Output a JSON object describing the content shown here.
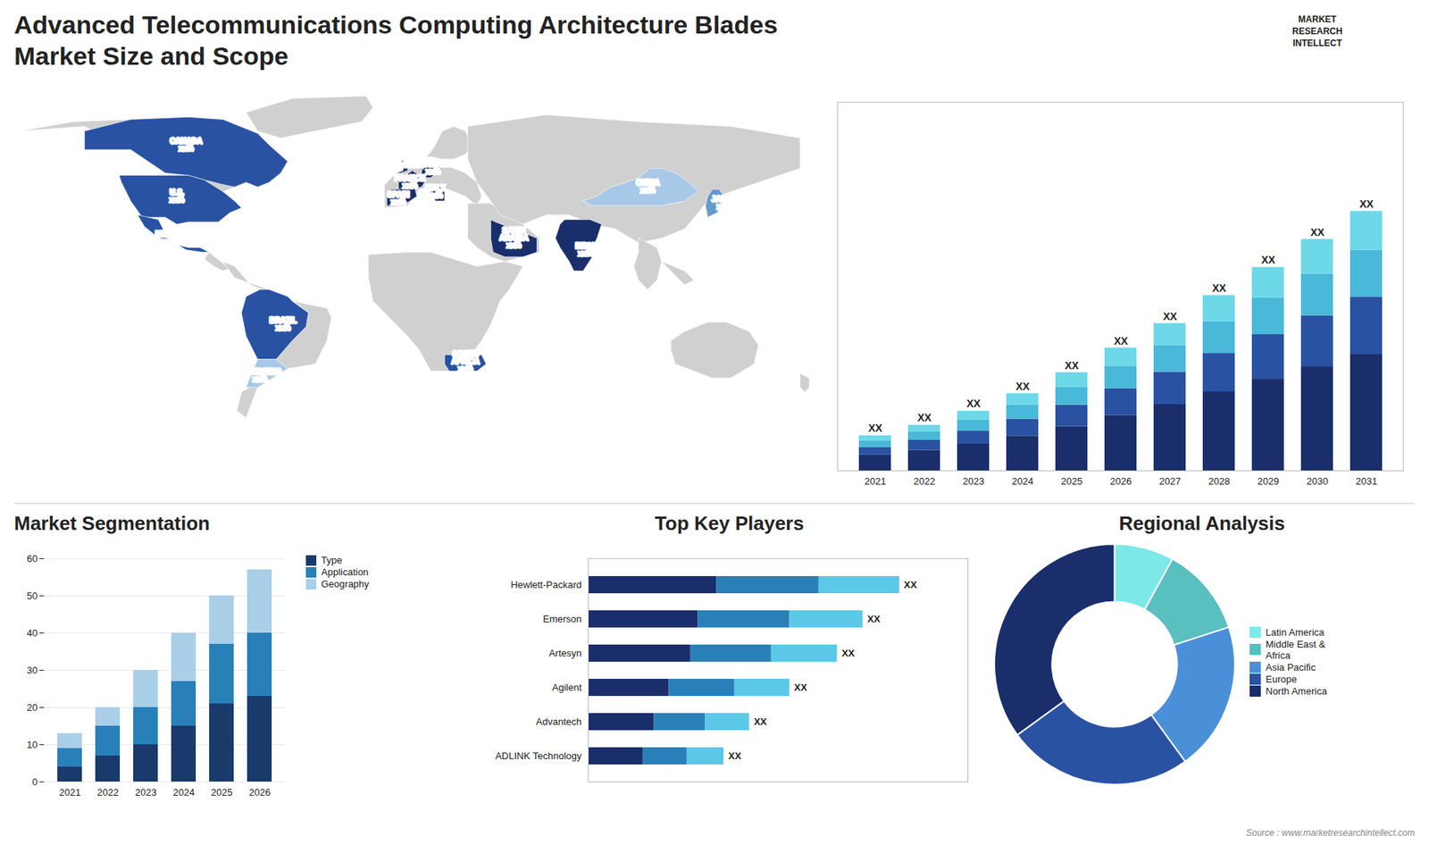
{
  "chart_data": [
    {
      "type": "bar",
      "title": "Advanced Telecommunications Computing Architecture Blades",
      "subtitle": "Market Size and Scope",
      "categories": [
        "2021",
        "2022",
        "2023",
        "2024",
        "2025",
        "2026",
        "2027",
        "2028",
        "2029",
        "2030",
        "2031"
      ],
      "series": [
        {
          "color": "#1a2e6b",
          "values": [
            0.45,
            0.585,
            0.765,
            0.99,
            1.26,
            1.575,
            1.89,
            2.25,
            2.61,
            2.97,
            3.33
          ]
        },
        {
          "color": "#2952a3",
          "values": [
            0.22,
            0.286,
            0.374,
            0.484,
            0.616,
            0.77,
            0.924,
            1.1,
            1.276,
            1.452,
            1.628
          ]
        },
        {
          "color": "#4ab8d8",
          "values": [
            0.18,
            0.234,
            0.306,
            0.396,
            0.504,
            0.63,
            0.756,
            0.9,
            1.044,
            1.188,
            1.332
          ]
        },
        {
          "color": "#6dd8e8",
          "values": [
            0.15,
            0.195,
            0.255,
            0.33,
            0.42,
            0.525,
            0.63,
            0.75,
            0.87,
            0.99,
            1.11
          ]
        }
      ],
      "stacked": true,
      "ylim": [
        0,
        10.508
      ],
      "tick_labels": "x",
      "value_labels": [
        "XX",
        "XX",
        "XX",
        "XX",
        "XX",
        "XX",
        "XX",
        "XX",
        "XX",
        "XX",
        "XX"
      ],
      "annotations": [
        "MARKET",
        "RESEARCH",
        "INTELLECT",
        "Source : www.marketresearchintellect.com"
      ]
    },
    {
      "type": "map",
      "categories": [
        "U.S.",
        "CANADA",
        "MEXICO",
        "BRAZIL",
        "ARGENTINA",
        "U.K.",
        "FRANCE",
        "GERMANY",
        "SPAIN",
        "ITALY",
        "SAUDI\nARABIA",
        "SOUTH\nAFRICA",
        "CHINA",
        "JAPAN",
        "INDIA"
      ],
      "value_labels": [
        "xx%",
        "xx%",
        "xx%",
        "xx%",
        "xx%",
        "xx%",
        "xx%",
        "xx%",
        "xx%",
        "xx%",
        "xx%",
        "xx%",
        "xx%",
        "xx%",
        "xx%"
      ],
      "colors": [
        "#2952a3",
        "#2952a3",
        "#2952a3",
        "#2952a3",
        "#a8c8e8",
        "#1a2e6b",
        "#1a2e6b",
        "#1a2e6b",
        "#1a2e6b",
        "#1a2e6b",
        "#1a2e6b",
        "#2952a3",
        "#a8c8e8",
        "#6699cc",
        "#1a2e6b"
      ],
      "color": "#d0d0d0"
    },
    {
      "type": "bar",
      "title": "Market Segmentation",
      "categories": [
        "2021",
        "2022",
        "2023",
        "2024",
        "2025",
        "2026"
      ],
      "series": [
        {
          "name": "Type",
          "color": "#1a3a6b",
          "values": [
            4,
            7,
            10,
            15,
            21,
            23
          ]
        },
        {
          "name": "Application",
          "color": "#2980b9",
          "values": [
            5,
            8,
            10,
            12,
            16,
            17
          ]
        },
        {
          "name": "Geography",
          "color": "#aacfe8",
          "values": [
            4,
            5,
            10,
            13,
            13,
            17
          ]
        }
      ],
      "stacked": true,
      "ylim": [
        0,
        60
      ],
      "yticks": [
        0,
        10,
        20,
        30,
        40,
        50,
        60
      ],
      "grid": true,
      "legend": "right"
    },
    {
      "type": "bar",
      "title": "Top Key Players",
      "orientation": "horizontal",
      "categories": [
        "Hewlett-Packard",
        "Emerson",
        "Artesyn",
        "Agilent",
        "Advantech",
        "ADLINK Technology"
      ],
      "series": [
        {
          "color": "#1a2e6b",
          "values": [
            3.5,
            3.0,
            2.8,
            2.2,
            1.8,
            1.5
          ]
        },
        {
          "color": "#2980b9",
          "values": [
            2.8,
            2.5,
            2.2,
            1.8,
            1.4,
            1.2
          ]
        },
        {
          "color": "#5bc8e8",
          "values": [
            2.2,
            2.0,
            1.8,
            1.5,
            1.2,
            1.0
          ]
        }
      ],
      "stacked": true,
      "xlim": [
        0,
        10.37
      ],
      "tick_labels": "y",
      "value_labels": [
        "XX",
        "XX",
        "XX",
        "XX",
        "XX",
        "XX"
      ]
    },
    {
      "type": "donut",
      "title": "Regional Analysis",
      "categories": [
        "Latin America",
        "Middle East &\nAfrica",
        "Asia Pacific",
        "Europe",
        "North America"
      ],
      "values": [
        8,
        12,
        20,
        25,
        35
      ],
      "colors": [
        "#7de8e8",
        "#5abfbf",
        "#4a90d9",
        "#2952a3",
        "#1a2e6b"
      ],
      "legend": "right"
    }
  ]
}
